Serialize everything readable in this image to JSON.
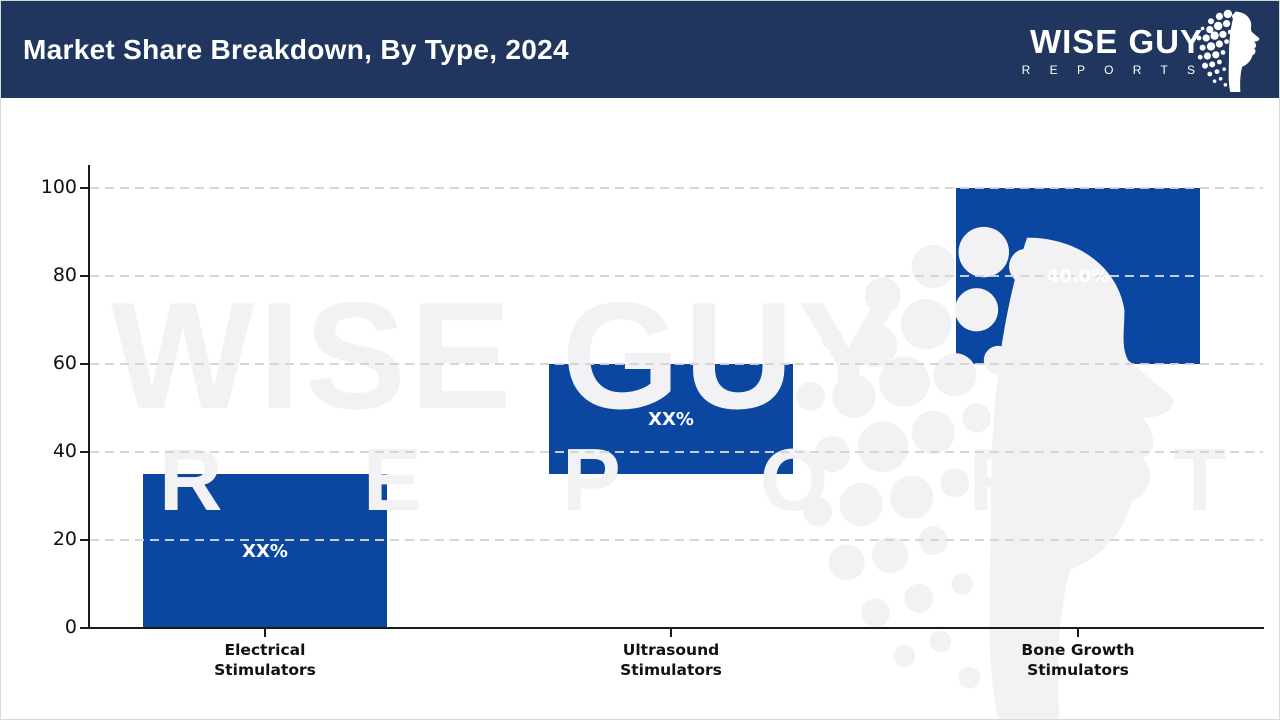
{
  "header": {
    "title": "Market Share Breakdown, By Type, 2024",
    "background_color": "#21365f",
    "logo": {
      "line1": "WISE GUY",
      "line2": "R E P O R T S"
    }
  },
  "watermark": {
    "line1": "WISE GUY",
    "line2": "R E P O R T S"
  },
  "chart_data": {
    "type": "bar",
    "subtype": "floating-waterfall",
    "title": "Market Share Breakdown, By Type, 2024",
    "xlabel": "",
    "ylabel": "",
    "ylim": [
      0,
      100
    ],
    "yticks": [
      0,
      20,
      40,
      60,
      80,
      100
    ],
    "grid": "horizontal-dashed",
    "legend": "none",
    "bar_color": "#0b47a1",
    "bar_label_color": "#ffffff",
    "categories": [
      {
        "line1": "Electrical",
        "line2": "Stimulators"
      },
      {
        "line1": "Ultrasound",
        "line2": "Stimulators"
      },
      {
        "line1": "Bone Growth",
        "line2": "Stimulators"
      }
    ],
    "segments": [
      {
        "category": "Electrical Stimulators",
        "start": 0,
        "end": 35,
        "label": "XX%"
      },
      {
        "category": "Ultrasound Stimulators",
        "start": 35,
        "end": 60,
        "label": "XX%"
      },
      {
        "category": "Bone Growth Stimulators",
        "start": 60,
        "end": 100,
        "label": "40.0%"
      }
    ]
  }
}
